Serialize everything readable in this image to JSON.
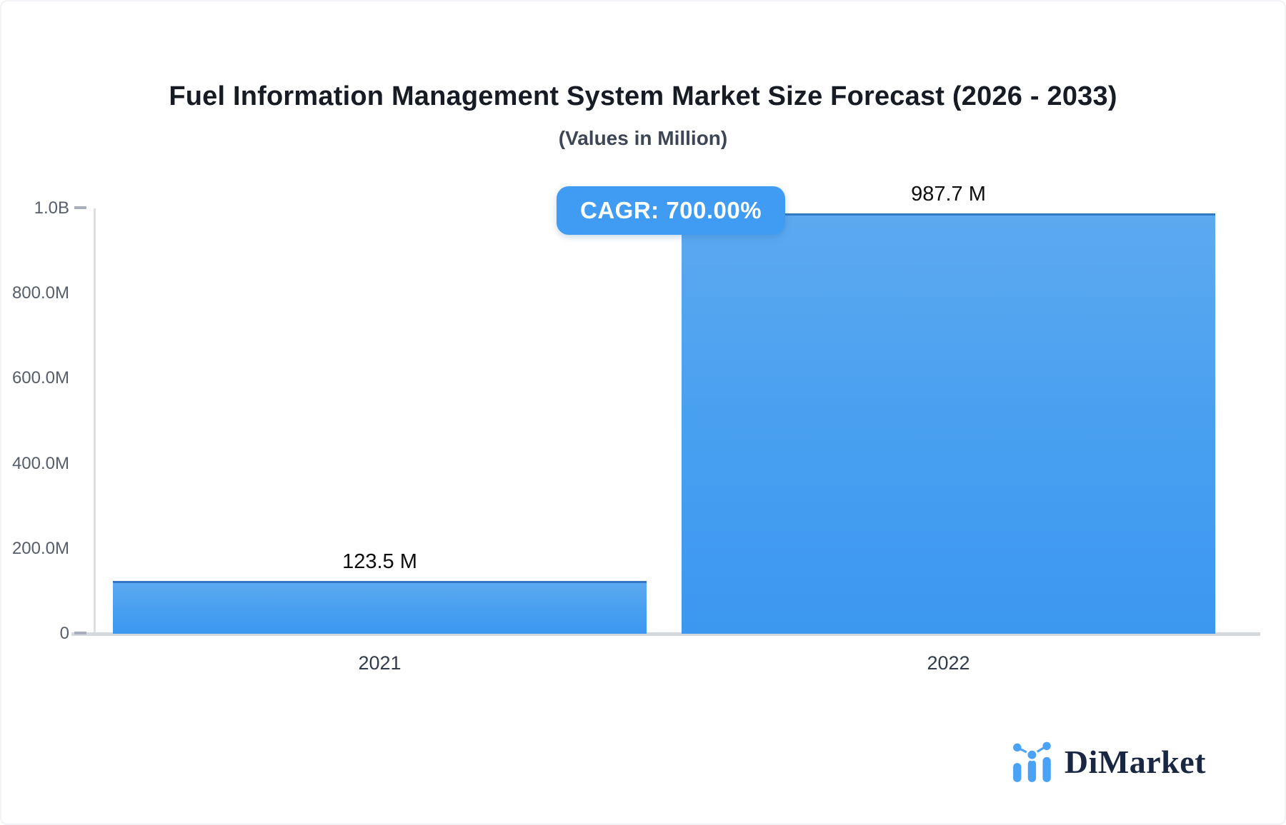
{
  "chart_data": {
    "type": "bar",
    "title": "Fuel Information Management System Market Size Forecast (2026 - 2033)",
    "subtitle": "(Values in Million)",
    "categories": [
      "2021",
      "2022"
    ],
    "values": [
      123.5,
      987.7
    ],
    "unit": "Million",
    "value_labels": [
      "123.5 M",
      "987.7 M"
    ],
    "ylim": [
      0,
      1000
    ],
    "y_ticks": [
      {
        "label": "0",
        "value": 0
      },
      {
        "label": "200.0M",
        "value": 200
      },
      {
        "label": "400.0M",
        "value": 400
      },
      {
        "label": "600.0M",
        "value": 600
      },
      {
        "label": "800.0M",
        "value": 800
      },
      {
        "label": "1.0B",
        "value": 1000
      }
    ],
    "grid": false,
    "legend": "none",
    "annotations": {
      "cagr": "CAGR: 700.00%"
    },
    "colors": {
      "bar_top": "#5ca9ef",
      "bar_bottom": "#3c97ef",
      "bar_cap": "#3478c3",
      "badge": "#3f9cf2",
      "axis_line": "#d5d8dd"
    }
  },
  "footer": {
    "brand": "DiMarket"
  }
}
